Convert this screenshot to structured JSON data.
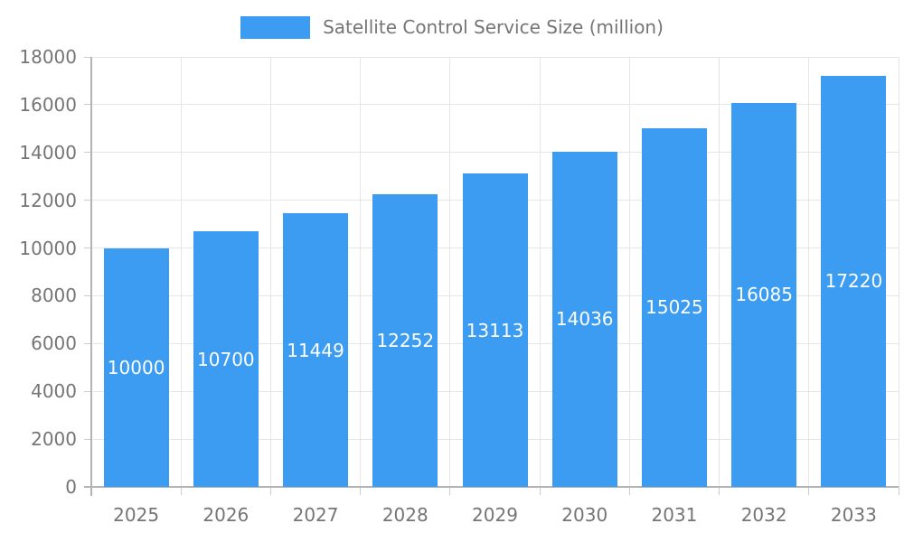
{
  "chart_data": {
    "type": "bar",
    "title": "",
    "xlabel": "",
    "ylabel": "",
    "legend": "Satellite Control Service Size (million)",
    "legend_position": "top",
    "categories": [
      "2025",
      "2026",
      "2027",
      "2028",
      "2029",
      "2030",
      "2031",
      "2032",
      "2033"
    ],
    "values": [
      10000,
      10700,
      11449,
      12252,
      13113,
      14036,
      15025,
      16085,
      17220
    ],
    "ylim": [
      0,
      18000
    ],
    "yticks": [
      0,
      2000,
      4000,
      6000,
      8000,
      10000,
      12000,
      14000,
      16000,
      18000
    ],
    "grid": true,
    "value_labels": "inside-center"
  },
  "colors": {
    "bar": "#3b9cf1",
    "axis_line": "#b3b3b3",
    "gridline": "#e6e6e6",
    "tick": "#cccccc",
    "label_text": "#757575",
    "value_label_text": "#ffffff",
    "background": "#ffffff"
  }
}
